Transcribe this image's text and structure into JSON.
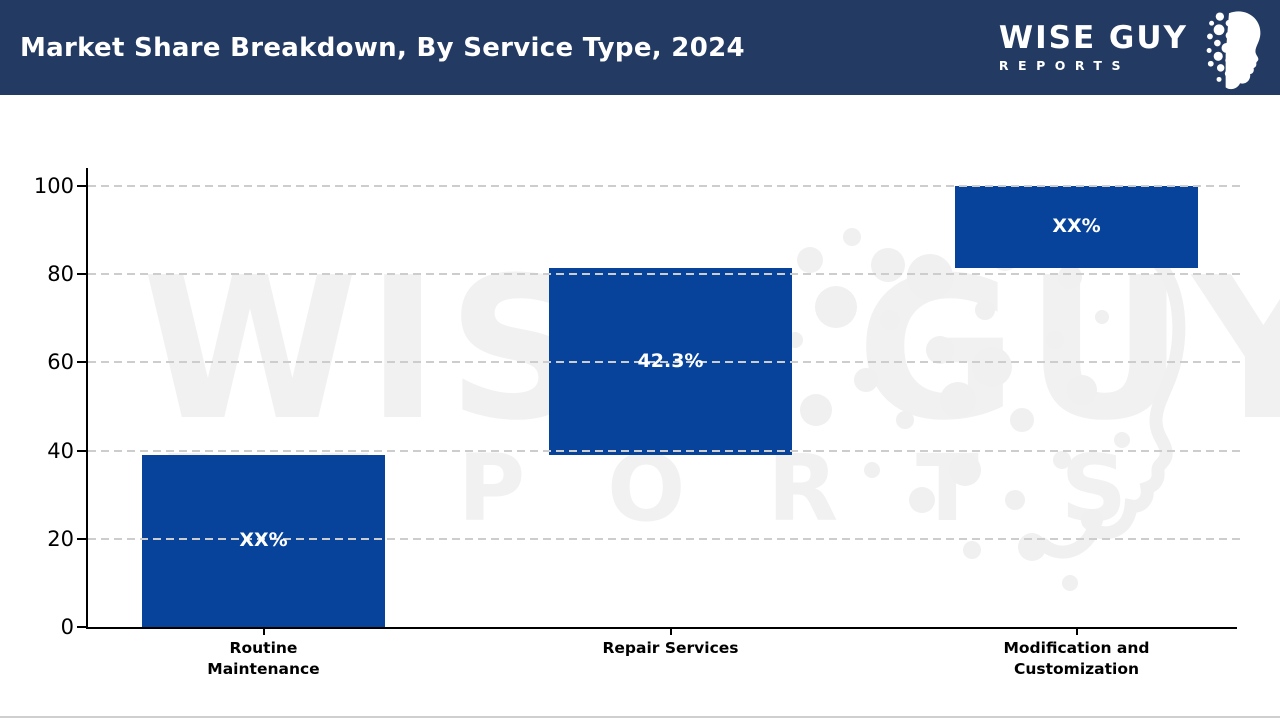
{
  "header": {
    "title": "Market Share Breakdown, By Service Type, 2024",
    "logo": {
      "name": "WISE GUY",
      "sub": "REPORTS"
    }
  },
  "watermark": {
    "line1": "WISE GUY",
    "line2": "REPORTS"
  },
  "chart_data": {
    "type": "bar",
    "variant": "waterfall",
    "title": "Market Share Breakdown, By Service Type, 2024",
    "categories": [
      "Routine Maintenance",
      "Repair Services",
      "Modification and Customization"
    ],
    "category_lines": [
      [
        "Routine",
        "Maintenance"
      ],
      [
        "Repair Services"
      ],
      [
        "Modification and",
        "Customization"
      ]
    ],
    "bars": [
      {
        "category": "Routine Maintenance",
        "start": 0,
        "end": 39,
        "label": "XX%"
      },
      {
        "category": "Repair Services",
        "start": 39,
        "end": 81.3,
        "label": "42.3%"
      },
      {
        "category": "Modification and Customization",
        "start": 81.3,
        "end": 100,
        "label": "XX%"
      }
    ],
    "xlabel": "",
    "ylabel": "",
    "ylim": [
      0,
      100
    ],
    "yticks": [
      0,
      20,
      40,
      60,
      80,
      100
    ],
    "grid": "horizontal-dashed",
    "legend": "none"
  },
  "colors": {
    "header_bg": "#233a63",
    "bar": "#07439a",
    "grid": "#cdcdcd",
    "watermark": "#f1f1f1",
    "bar_label_text": "#ffffff",
    "axis_text": "#000000",
    "title_text": "#ffffff"
  }
}
